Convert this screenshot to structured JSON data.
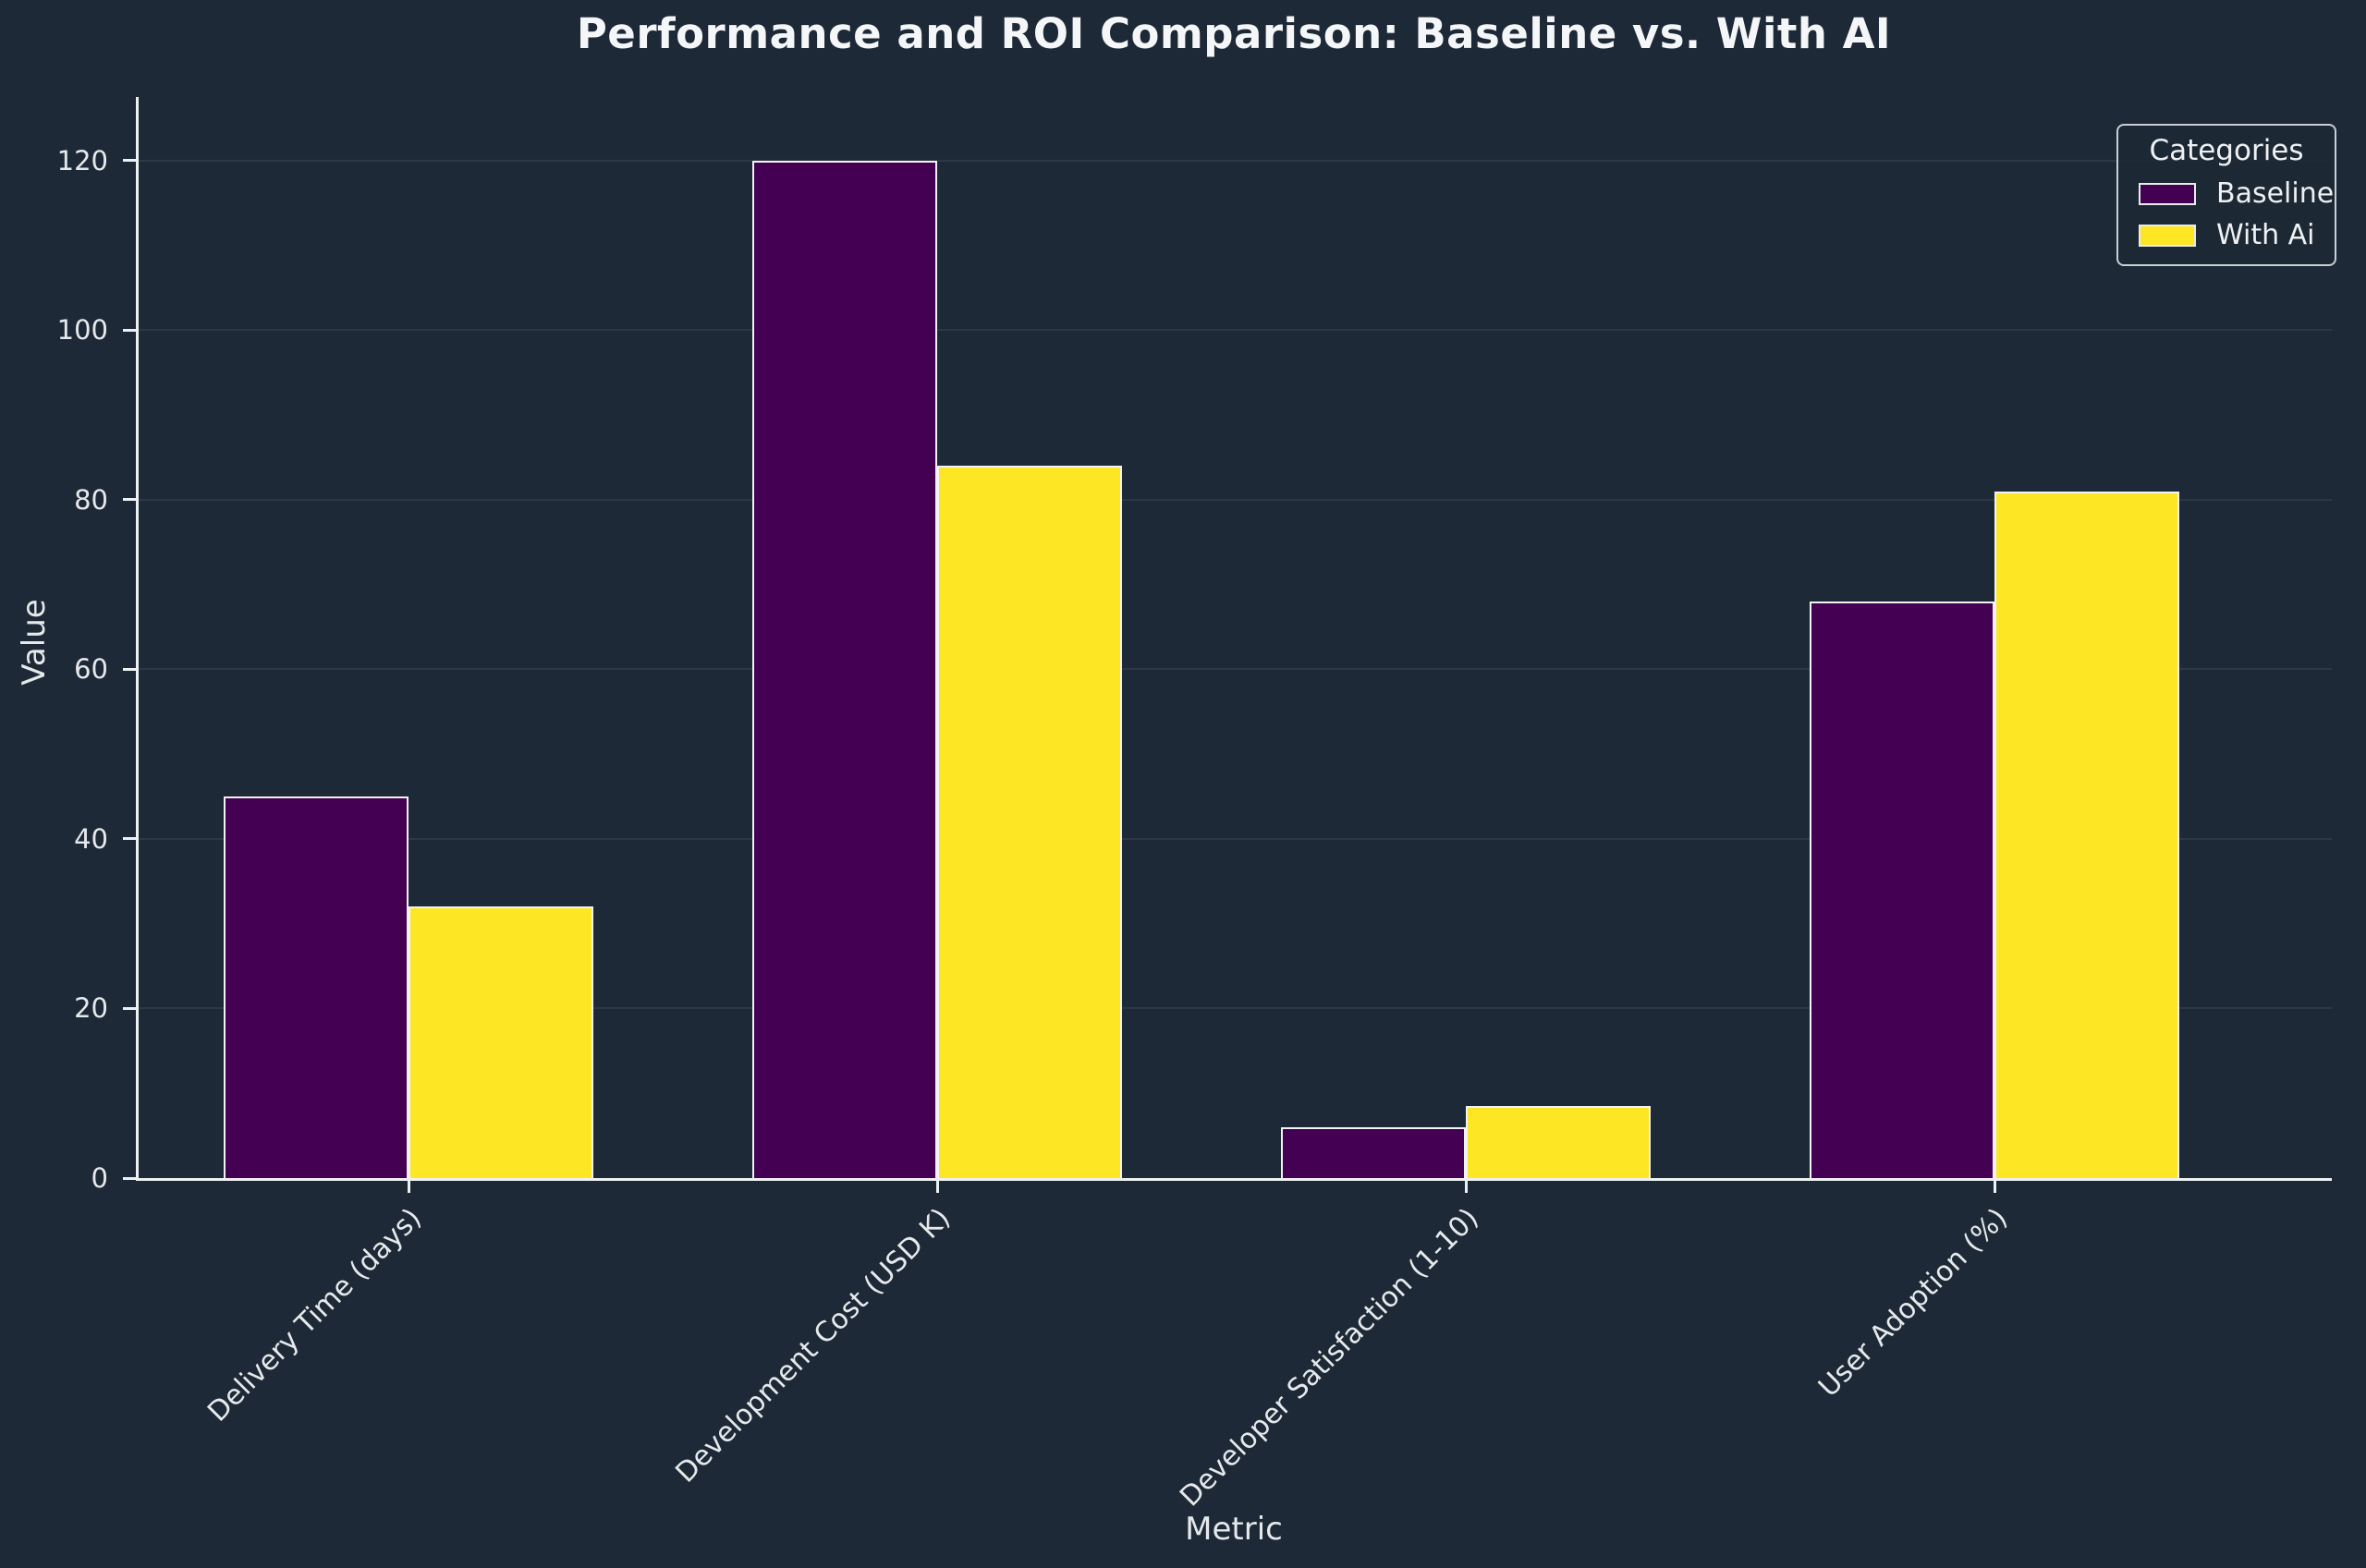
{
  "title": "Performance and ROI Comparison: Baseline vs. With AI",
  "chart_data": {
    "type": "bar",
    "title": "Performance and ROI Comparison: Baseline vs. With AI",
    "xlabel": "Metric",
    "ylabel": "Value",
    "categories": [
      "Delivery Time (days)",
      "Development Cost (USD K)",
      "Developer Satisfaction (1-10)",
      "User Adoption (%)"
    ],
    "series": [
      {
        "name": "Baseline",
        "color": "#440154",
        "values": [
          45,
          120,
          6,
          68
        ]
      },
      {
        "name": "With Ai",
        "color": "#fde725",
        "values": [
          32,
          84,
          8.5,
          81
        ]
      }
    ],
    "legend_title": "Categories",
    "legend_position": "top-right",
    "y_ticks": [
      0,
      20,
      40,
      60,
      80,
      100,
      120
    ],
    "ylim": [
      0,
      127.5
    ],
    "grid": true,
    "background_color": "#1d2936",
    "grid_color": "rgba(236,240,243,0.08)",
    "axis_color": "#eef1f3",
    "bar_edge_color": "#f2f2f2",
    "text_color": "#e6e9ec"
  }
}
